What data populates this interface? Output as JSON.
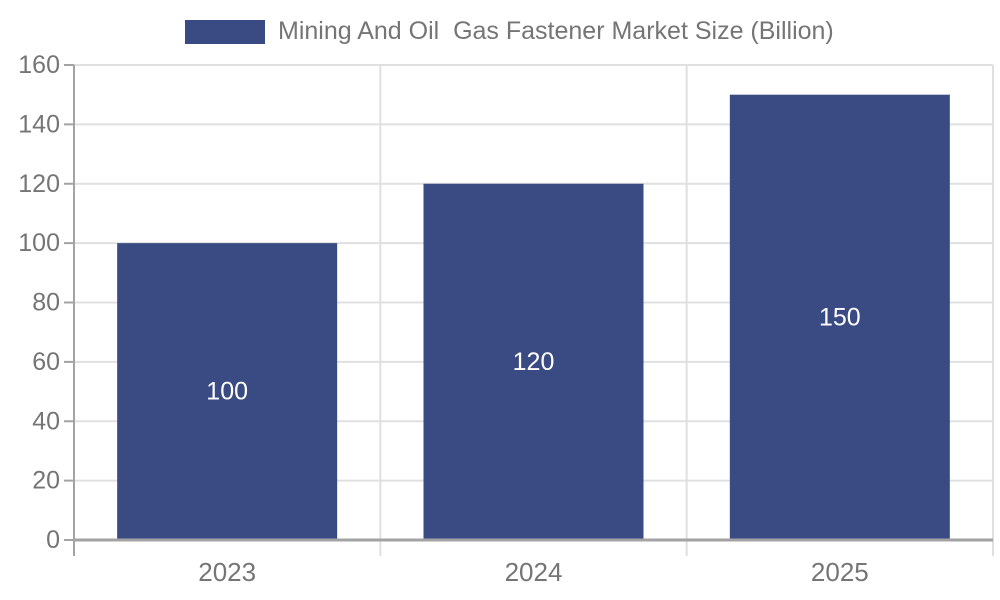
{
  "legend": {
    "swatch_color": "#3A4B84"
  },
  "chart_data": {
    "type": "bar",
    "title": "Mining And Oil  Gas Fastener Market Size (Billion)",
    "categories": [
      "2023",
      "2024",
      "2025"
    ],
    "series": [
      {
        "name": "Mining And Oil  Gas Fastener Market Size (Billion)",
        "values": [
          100,
          120,
          150
        ]
      }
    ],
    "value_labels": [
      "100",
      "120",
      "150"
    ],
    "ytick_labels": [
      "0",
      "20",
      "40",
      "60",
      "80",
      "100",
      "120",
      "140",
      "160"
    ],
    "xlabel": "",
    "ylabel": "",
    "ylim": [
      0,
      160
    ],
    "ytick_step": 20,
    "grid": true,
    "legend_position": "top",
    "colors": {
      "bar": "#3A4B84",
      "value_label": "#FFFFFF",
      "axis_text": "#757575",
      "gridline": "#E0E0E0",
      "axis_line": "#A3A3A3"
    }
  }
}
